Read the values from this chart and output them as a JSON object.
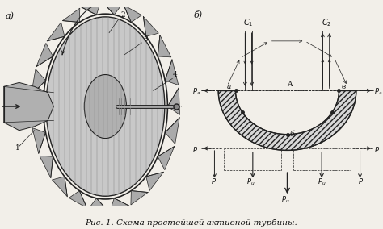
{
  "title": "Рис. 1. Схема простейшей активной турбины.",
  "label_a": "а)",
  "label_b": "б)",
  "bg_color": "#f2efe9",
  "text_color": "#111111",
  "fig_width": 4.74,
  "fig_height": 2.84,
  "caption_fontsize": 7.5,
  "label_fontsize": 8,
  "annot_fontsize": 6.5,
  "small_fontsize": 6,
  "blade_hatch_color": "#555555",
  "blade_face_color": "#d8d8d8",
  "line_color": "#222222",
  "arrow_color": "#222222"
}
